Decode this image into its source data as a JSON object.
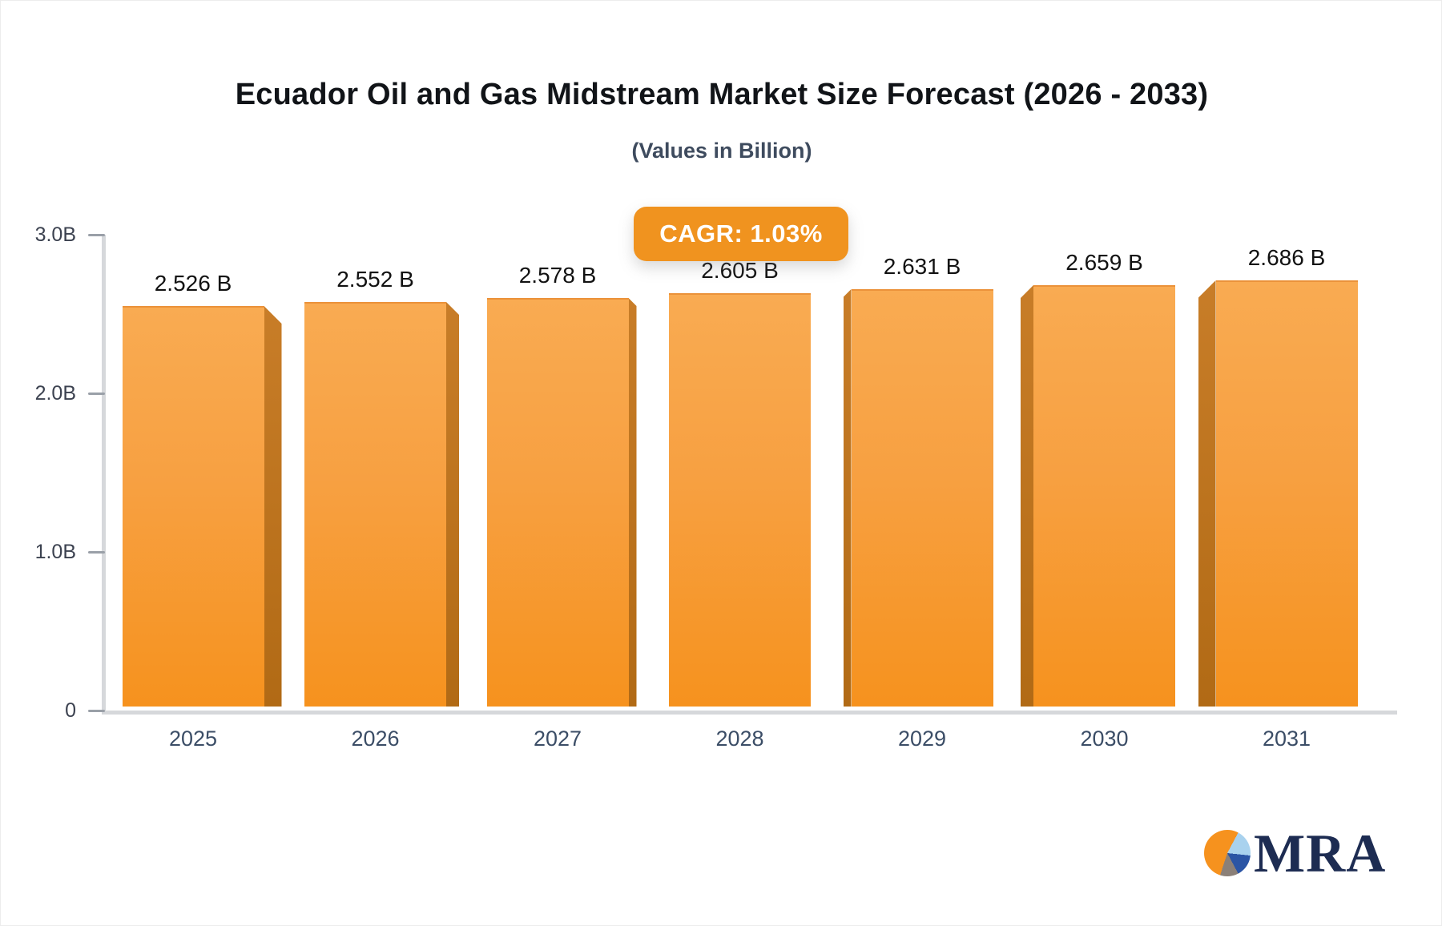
{
  "header": {
    "title": "Ecuador Oil and Gas Midstream Market Size Forecast (2026 - 2033)",
    "subtitle": "(Values in Billion)"
  },
  "cagr": {
    "label": "CAGR: 1.03%"
  },
  "chart_data": {
    "type": "bar",
    "title": "Ecuador Oil and Gas Midstream Market Size Forecast (2026 - 2033)",
    "subtitle": "(Values in Billion)",
    "categories": [
      "2025",
      "2026",
      "2027",
      "2028",
      "2029",
      "2030",
      "2031"
    ],
    "values": [
      2.526,
      2.552,
      2.578,
      2.605,
      2.631,
      2.659,
      2.686
    ],
    "value_labels": [
      "2.526 B",
      "2.552 B",
      "2.578 B",
      "2.605 B",
      "2.631 B",
      "2.659 B",
      "2.686 B"
    ],
    "annotation": "CAGR: 1.03%",
    "xlabel": "",
    "ylabel": "",
    "ylim": [
      0,
      3.0
    ],
    "yticks": [
      {
        "label": "3.0B",
        "value": 3.0
      },
      {
        "label": "2.0B",
        "value": 2.0
      },
      {
        "label": "1.0B",
        "value": 1.0
      },
      {
        "label": "0",
        "value": 0.0
      }
    ],
    "grid": false,
    "legend": false,
    "colors": {
      "bar_face_top": "#f9ab52",
      "bar_face_bottom": "#f6921e",
      "bar_side": "#bf7119",
      "badge": "#f0931f",
      "axis": "#d6d8db"
    }
  },
  "logo": {
    "text": "MRA",
    "pie_colors": [
      "#f6921e",
      "#a9d2ee",
      "#2b55a5",
      "#8b8078"
    ],
    "text_color": "#1d2c52"
  }
}
